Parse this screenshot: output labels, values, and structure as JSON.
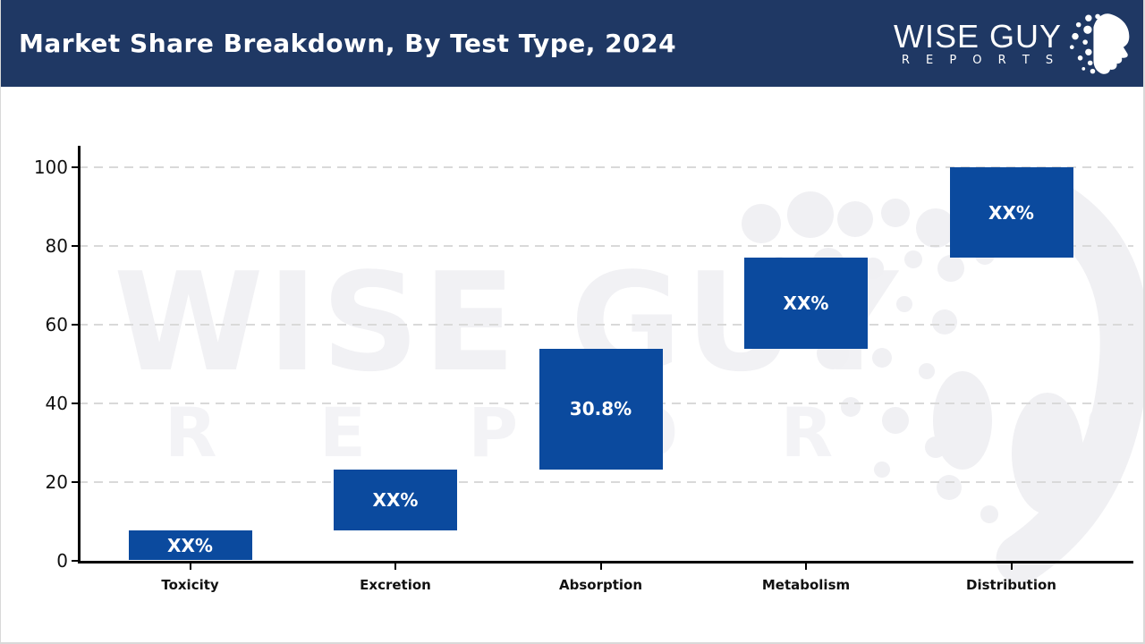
{
  "header": {
    "title": "Market Share Breakdown, By Test Type, 2024",
    "logo": {
      "line1": "WISE GUY",
      "line2": "R E P O R T S"
    }
  },
  "watermark": {
    "line1": "WISE GUY",
    "line2": "R E P O R T S"
  },
  "colors": {
    "header_bg": "#1f3864",
    "bar": "#0b4a9e",
    "grid": "#d9d9d9",
    "axis": "#000000",
    "bar_label": "#ffffff",
    "watermark": "#f1f1f4"
  },
  "chart_data": {
    "type": "bar",
    "subtype": "waterfall",
    "title": "Market Share Breakdown, By Test Type, 2024",
    "categories": [
      "Toxicity",
      "Excretion",
      "Absorption",
      "Metabolism",
      "Distribution"
    ],
    "segments": [
      {
        "category": "Toxicity",
        "start": 0,
        "end": 7.6,
        "value_label": "XX%"
      },
      {
        "category": "Excretion",
        "start": 7.6,
        "end": 23.1,
        "value_label": "XX%"
      },
      {
        "category": "Absorption",
        "start": 23.1,
        "end": 53.9,
        "value_label": "30.8%"
      },
      {
        "category": "Metabolism",
        "start": 53.9,
        "end": 77.0,
        "value_label": "XX%"
      },
      {
        "category": "Distribution",
        "start": 77.0,
        "end": 100.0,
        "value_label": "XX%"
      }
    ],
    "yticks": [
      0,
      20,
      40,
      60,
      80,
      100
    ],
    "ylim": [
      0,
      105
    ],
    "xlabel": "",
    "ylabel": "",
    "grid": "horizontal-dashed",
    "legend": "none"
  }
}
